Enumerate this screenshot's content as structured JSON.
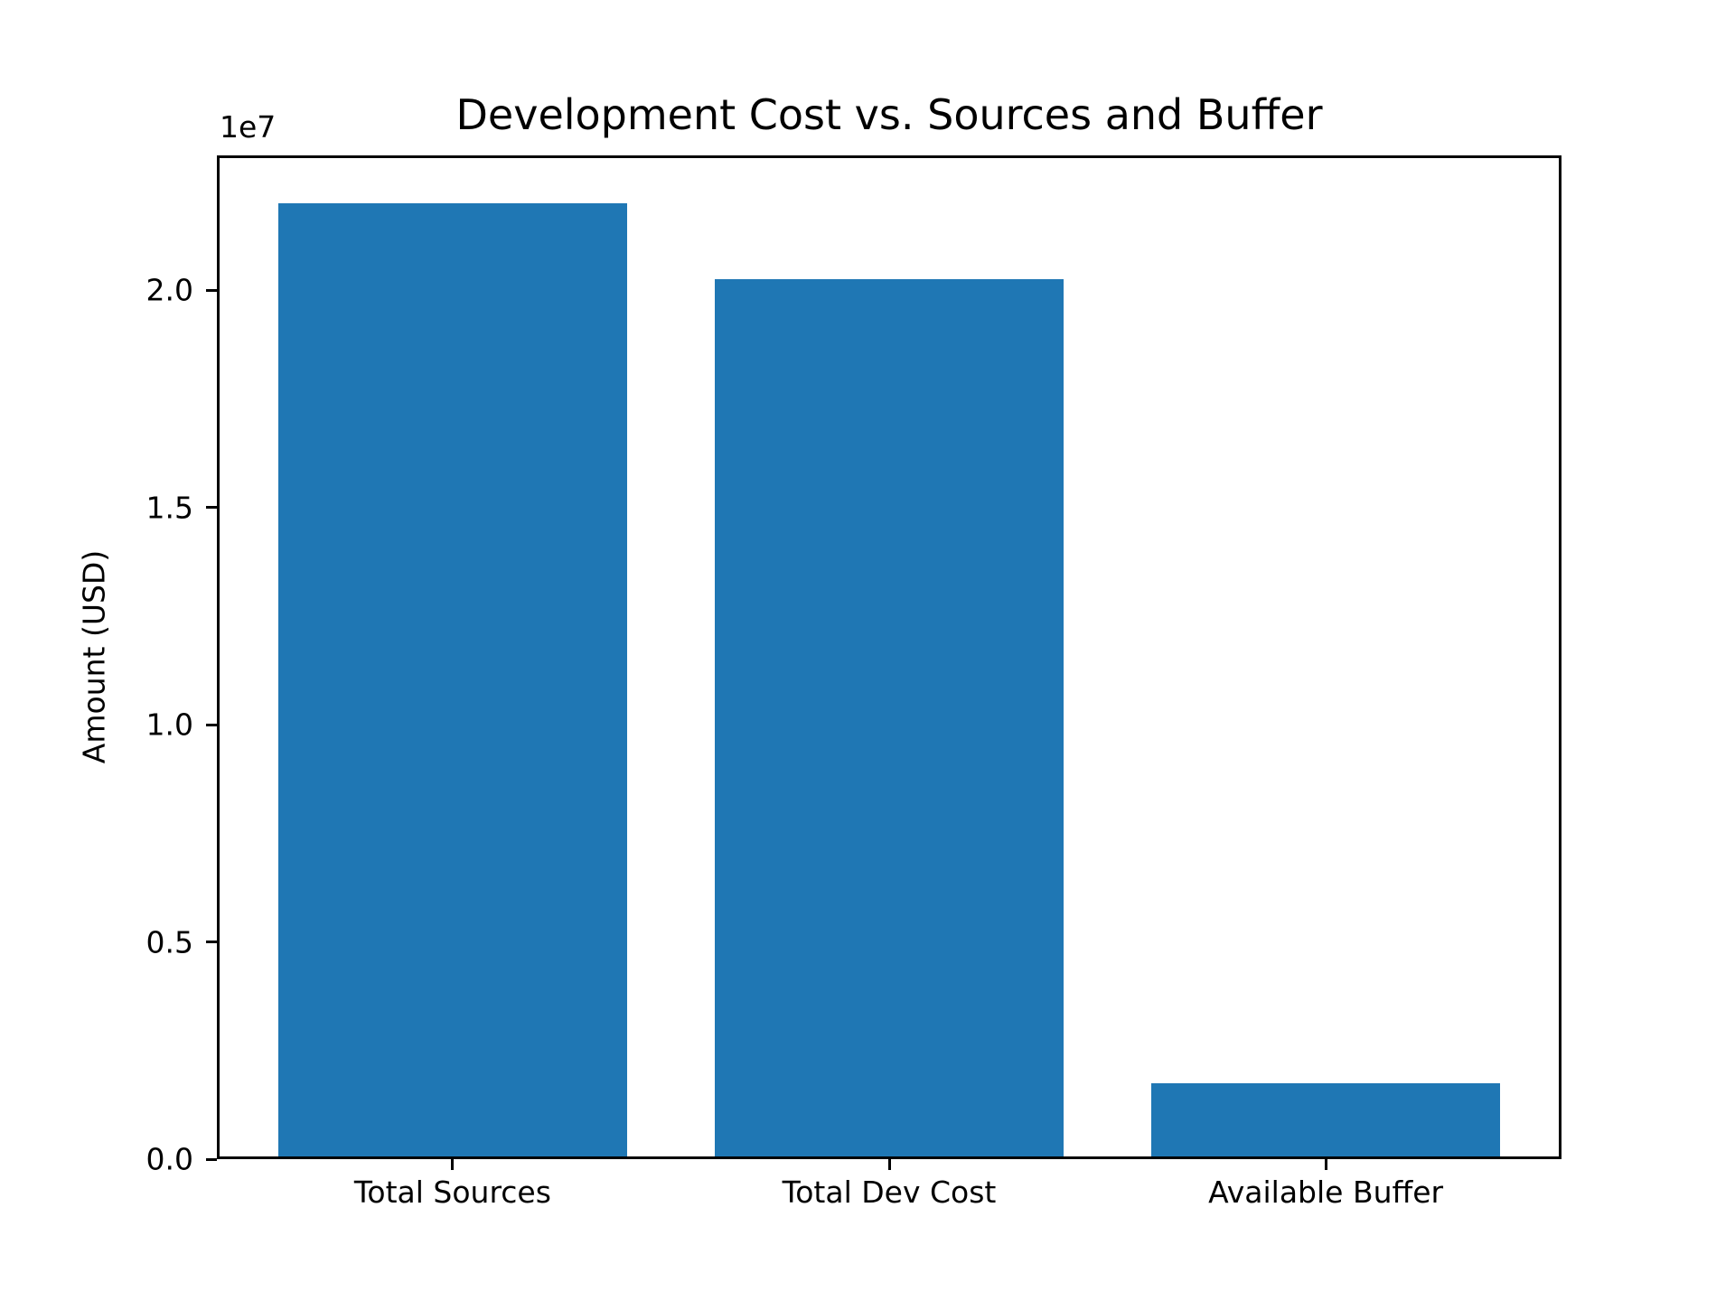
{
  "chart_data": {
    "type": "bar",
    "title": "Development Cost vs. Sources and Buffer",
    "xlabel": "",
    "ylabel": "Amount (USD)",
    "y_offset_text": "1e7",
    "categories": [
      "Total Sources",
      "Total Dev Cost",
      "Available Buffer"
    ],
    "values": [
      22000000,
      20250000,
      1750000
    ],
    "ylim": [
      0,
      23100000
    ],
    "yticks": {
      "values": [
        0,
        5000000,
        10000000,
        15000000,
        20000000
      ],
      "labels": [
        "0.0",
        "0.5",
        "1.0",
        "1.5",
        "2.0"
      ]
    },
    "grid": false,
    "legend": "none",
    "bar_color": "#1f77b4",
    "text_color": "#000000",
    "axis_color": "#000000",
    "background_color": "#ffffff"
  }
}
